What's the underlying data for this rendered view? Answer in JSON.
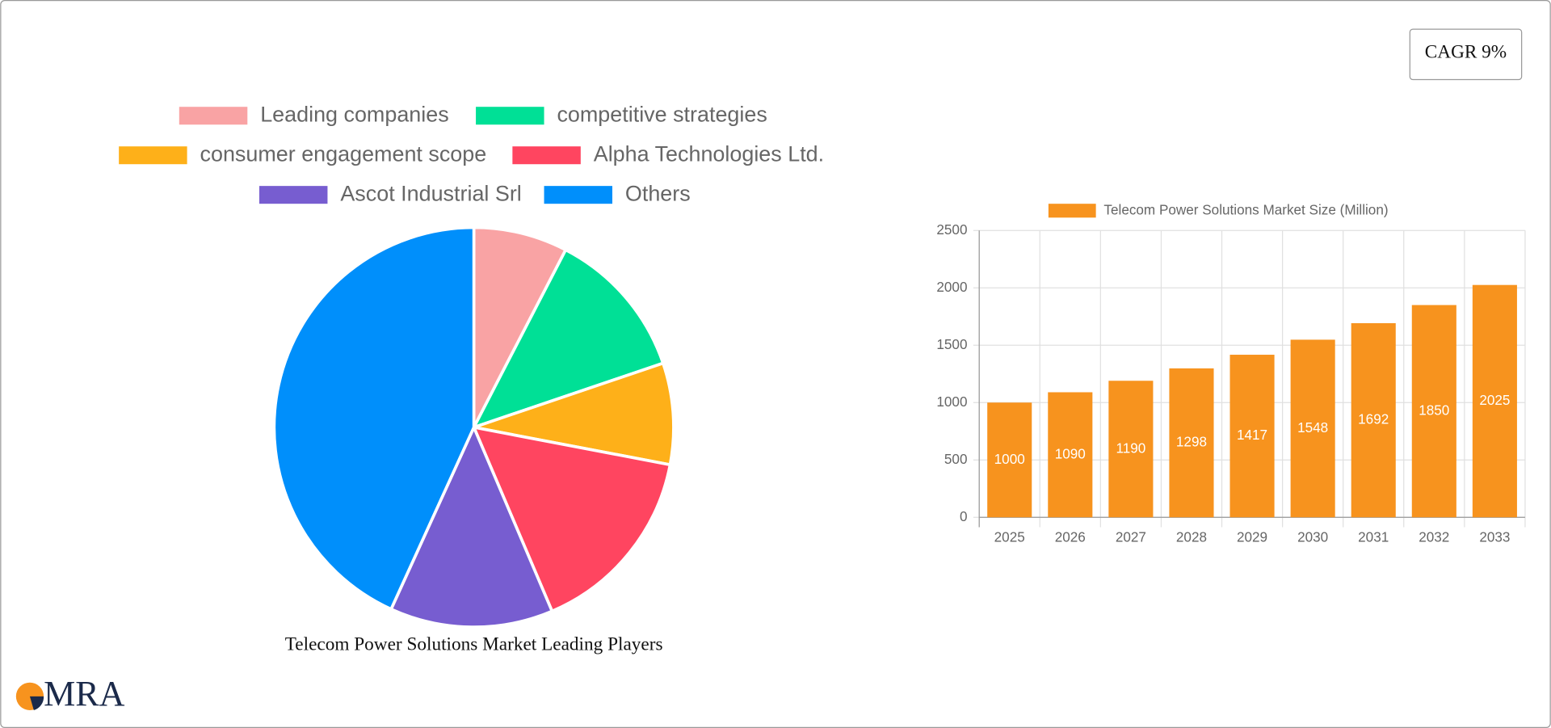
{
  "cagr": "CAGR 9%",
  "logo": "MRA",
  "chart_data": [
    {
      "type": "pie",
      "title": "Telecom Power Solutions Market Leading Players",
      "categories": [
        "Leading companies",
        "competitive strategies",
        "consumer engagement scope",
        "Alpha Technologies Ltd.",
        "Ascot Industrial Srl",
        "Others"
      ],
      "values": [
        7.6,
        12.2,
        8.2,
        15.6,
        13.2,
        43.2
      ],
      "colors": [
        "#f9a3a4",
        "#00e096",
        "#feb019",
        "#ff4560",
        "#775dd0",
        "#008ffb"
      ]
    },
    {
      "type": "bar",
      "categories": [
        "2025",
        "2026",
        "2027",
        "2028",
        "2029",
        "2030",
        "2031",
        "2032",
        "2033"
      ],
      "series": [
        {
          "name": "Telecom Power Solutions Market Size (Million)",
          "color": "#f7931e",
          "values": [
            1000,
            1090,
            1190,
            1298,
            1417,
            1548,
            1692,
            1850,
            2025
          ]
        }
      ],
      "ylim": [
        0,
        2500
      ],
      "yticks": [
        0,
        500,
        1000,
        1500,
        2000,
        2500
      ],
      "grid": true
    }
  ]
}
